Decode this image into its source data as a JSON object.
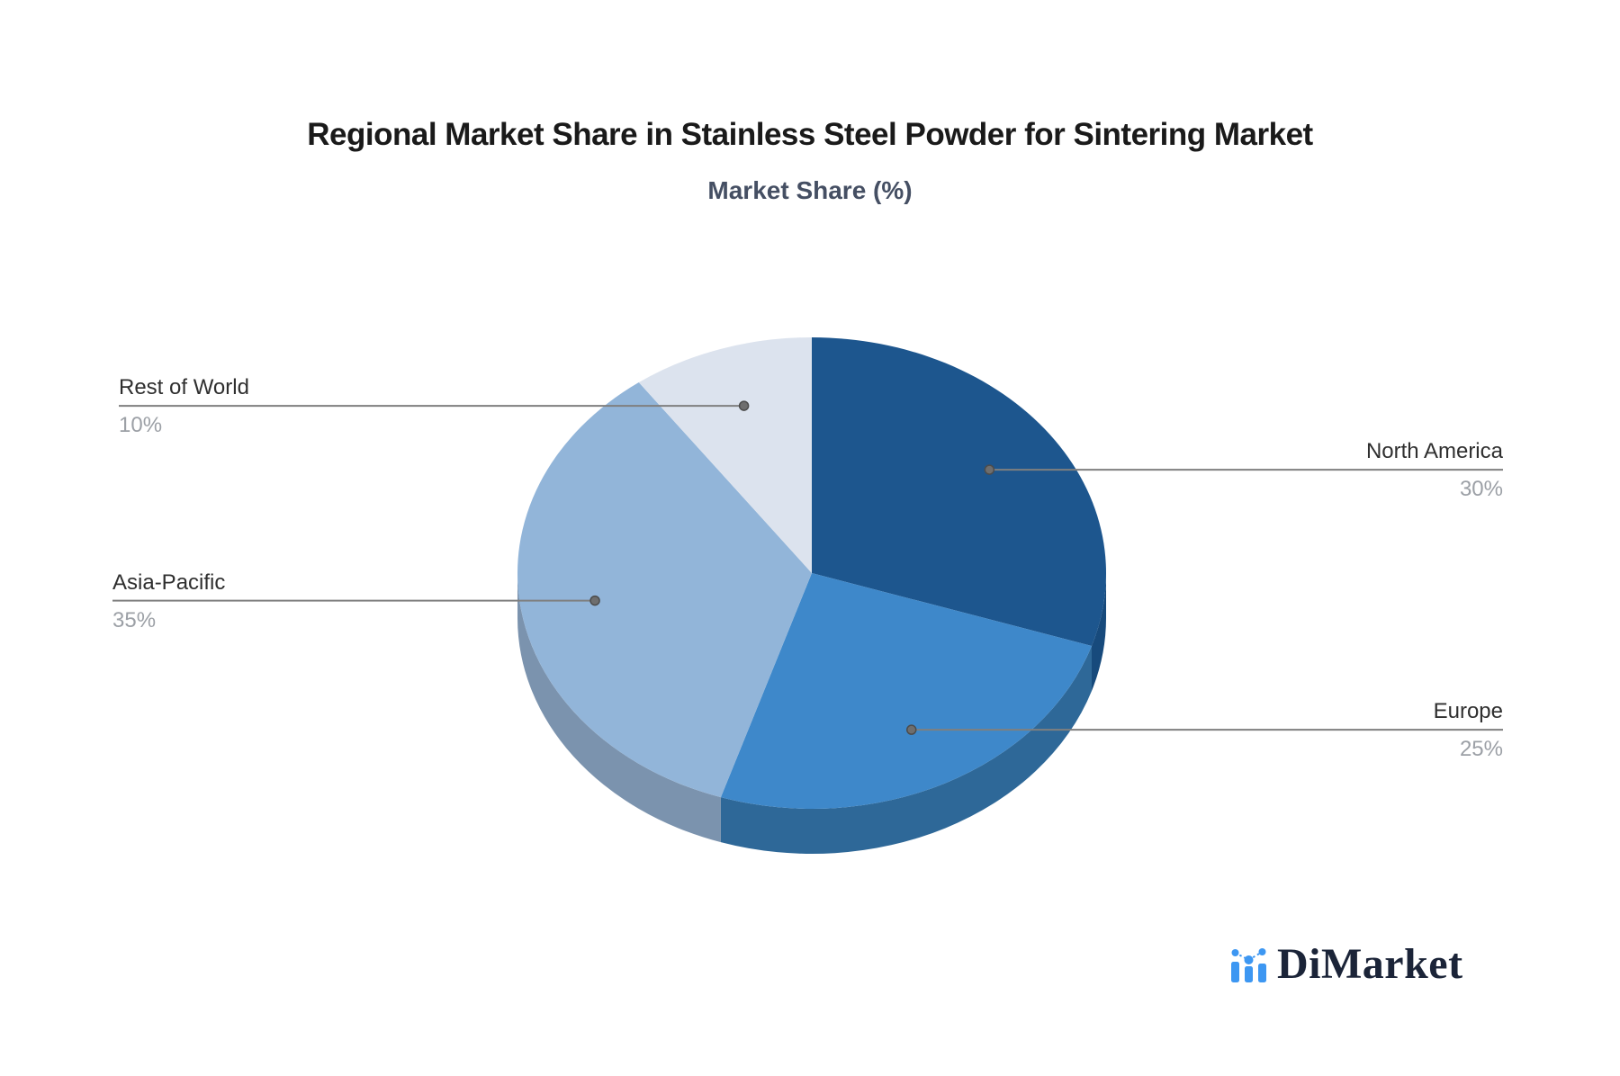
{
  "title": "Regional Market Share in Stainless Steel Powder for Sintering Market",
  "subtitle": "Market Share (%)",
  "chart_data": {
    "type": "pie",
    "title": "Market Share (%)",
    "unit": "%",
    "start_angle_deg": 0,
    "direction": "clockwise",
    "effect_3d": true,
    "slices": [
      {
        "label": "North America",
        "value": 30,
        "value_text": "30%",
        "color": "#1d568e",
        "side_color": "#174a7c"
      },
      {
        "label": "Europe",
        "value": 25,
        "value_text": "25%",
        "color": "#3e88ca",
        "side_color": "#2e6898"
      },
      {
        "label": "Asia-Pacific",
        "value": 35,
        "value_text": "35%",
        "color": "#92b5d9",
        "side_color": "#7b93ae"
      },
      {
        "label": "Rest of World",
        "value": 10,
        "value_text": "10%",
        "color": "#dce3ee"
      }
    ]
  },
  "leader": {
    "line_color": "#7f7f7f",
    "dot_color": "#6e6e6e",
    "dot_edge_color": "#4c4c4c"
  },
  "logo": {
    "text": "DiMarket",
    "icon": "bar-chart-trend-icon",
    "bar_color": "#3d97f2",
    "text_color": "#1b2438"
  }
}
